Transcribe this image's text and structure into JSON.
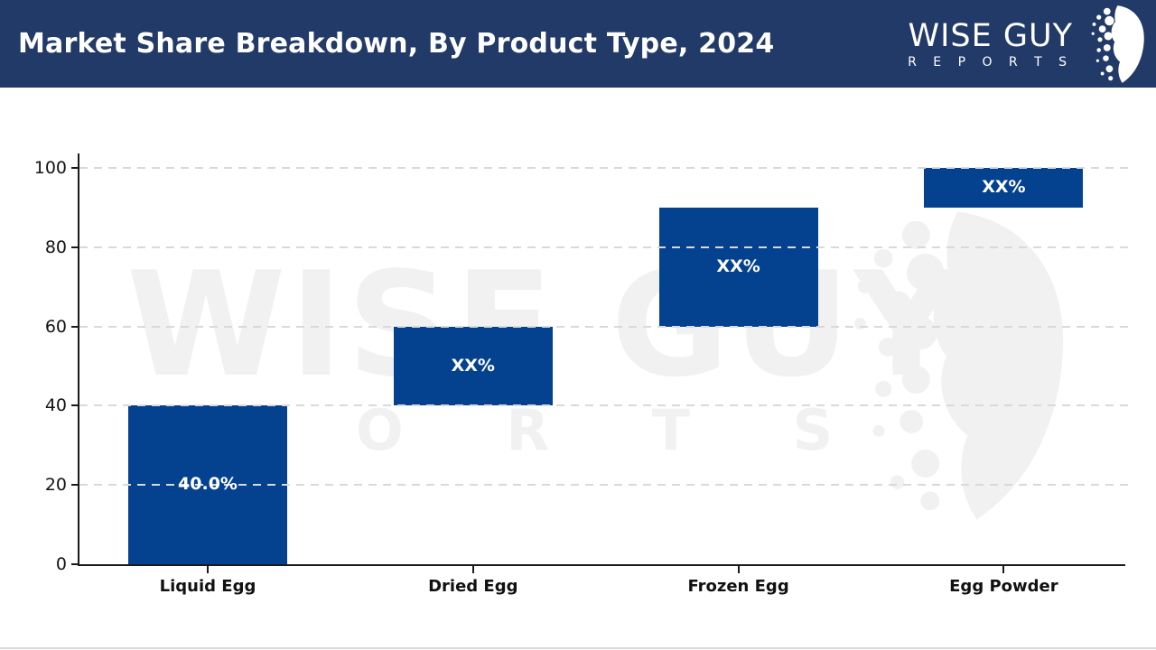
{
  "header": {
    "title": "Market Share Breakdown, By Product Type, 2024",
    "logo": {
      "wordmark": "WISE GUY",
      "subtext": "R E P O R T S"
    },
    "bg_color": "#223A67"
  },
  "watermark": {
    "line1": "WISE GUY",
    "line2": "P O R T S"
  },
  "chart_data": {
    "type": "bar",
    "subtype": "waterfall",
    "title": "Market Share Breakdown, By Product Type, 2024",
    "categories": [
      "Liquid Egg",
      "Dried Egg",
      "Frozen Egg",
      "Egg Powder"
    ],
    "values": [
      40,
      20,
      30,
      10
    ],
    "segments": [
      {
        "category": "Liquid Egg",
        "start": 0,
        "end": 40,
        "label": "40.0%"
      },
      {
        "category": "Dried Egg",
        "start": 40,
        "end": 60,
        "label": "XX%"
      },
      {
        "category": "Frozen Egg",
        "start": 60,
        "end": 90,
        "label": "XX%"
      },
      {
        "category": "Egg Powder",
        "start": 90,
        "end": 100,
        "label": "XX%"
      }
    ],
    "bar_color": "#04418E",
    "xlabel": "",
    "ylabel": "",
    "ylim": [
      0,
      100
    ],
    "yticks": [
      0,
      20,
      40,
      60,
      80,
      100
    ],
    "grid": "horizontal-dashed",
    "legend": "none"
  }
}
